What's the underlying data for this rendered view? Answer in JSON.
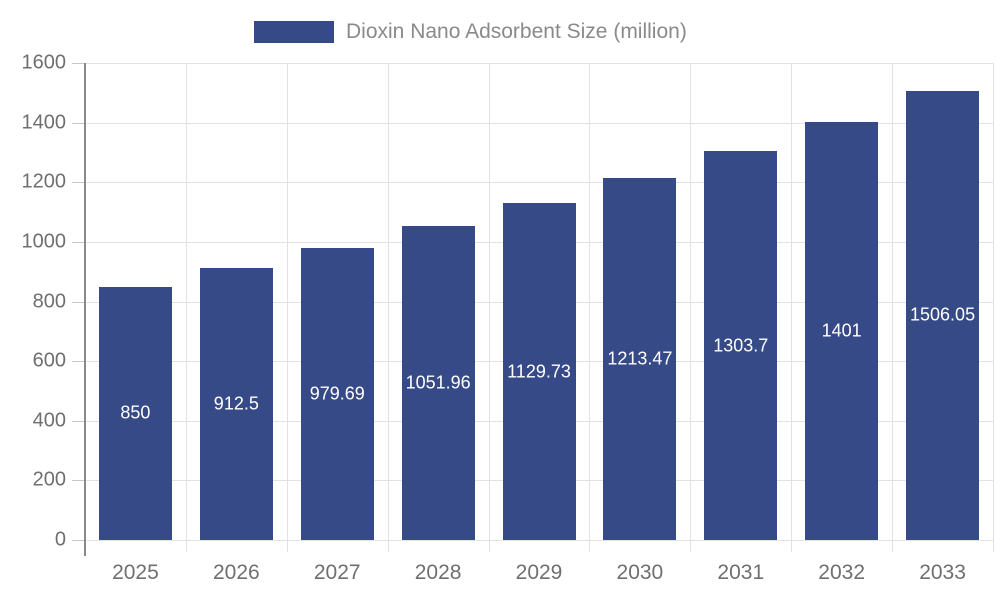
{
  "legend": {
    "label": "Dioxin Nano Adsorbent Size (million)"
  },
  "chart_data": {
    "type": "bar",
    "title": "Dioxin Nano Adsorbent Size (million)",
    "categories": [
      "2025",
      "2026",
      "2027",
      "2028",
      "2029",
      "2030",
      "2031",
      "2032",
      "2033"
    ],
    "values": [
      850,
      912.5,
      979.69,
      1051.96,
      1129.73,
      1213.47,
      1303.7,
      1401,
      1506.05
    ],
    "value_labels": [
      "850",
      "912.5",
      "979.69",
      "1051.96",
      "1129.73",
      "1213.47",
      "1303.7",
      "1401",
      "1506.05"
    ],
    "xlabel": "",
    "ylabel": "",
    "ylim": [
      0,
      1600
    ],
    "yticks": [
      0,
      200,
      400,
      600,
      800,
      1000,
      1200,
      1400,
      1600
    ],
    "grid": true,
    "legend_position": "top",
    "colors": {
      "bar": "#374a88",
      "grid": "#e2e2e2",
      "axis_line": "#898989",
      "tick": "#c6c6c6",
      "axis_label": "#6f6f6f",
      "legend_text": "#8a8a8a",
      "value_label": "#ffffff"
    }
  }
}
